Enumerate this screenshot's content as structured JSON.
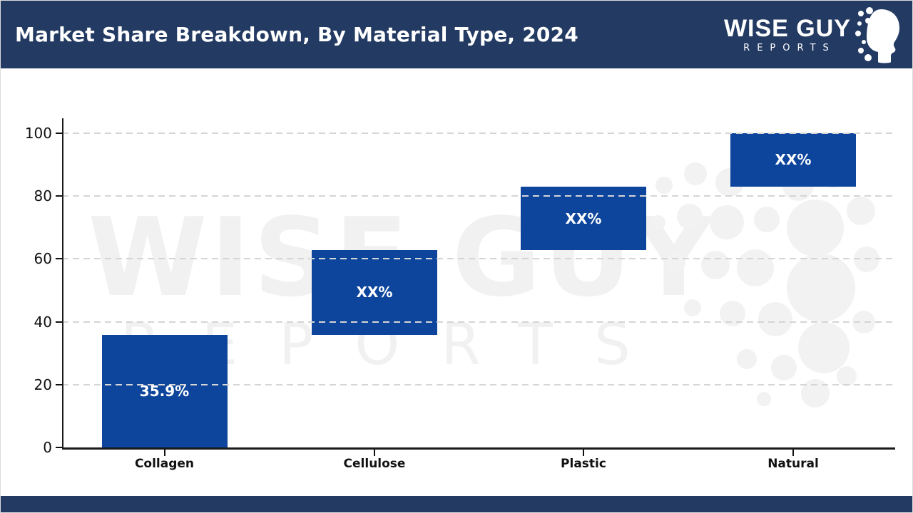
{
  "header": {
    "title": "Market Share Breakdown, By Material Type, 2024",
    "bg_color": "#233a63",
    "logo": {
      "line1": "WISE GUY",
      "line2": "REPORTS"
    }
  },
  "watermark": {
    "line1": "WISE GUY",
    "line2": "REPORTS",
    "color": "#f1f1f2"
  },
  "footer": {
    "bg_color": "#233a63"
  },
  "chart_data": {
    "type": "bar",
    "subtype": "waterfall",
    "title": "Market Share Breakdown, By Material Type, 2024",
    "categories": [
      "Collagen",
      "Cellulose",
      "Plastic",
      "Natural"
    ],
    "segments": [
      {
        "category": "Collagen",
        "start": 0,
        "end": 35.9,
        "label": "35.9%"
      },
      {
        "category": "Cellulose",
        "start": 35.9,
        "end": 62.8,
        "label": "XX%"
      },
      {
        "category": "Plastic",
        "start": 62.8,
        "end": 83.0,
        "label": "XX%"
      },
      {
        "category": "Natural",
        "start": 83.0,
        "end": 100,
        "label": "XX%"
      }
    ],
    "xlabel": "",
    "ylabel": "",
    "ylim": [
      0,
      100
    ],
    "yticks": [
      0,
      20,
      40,
      60,
      80,
      100
    ],
    "grid": "dashed-horizontal",
    "legend": "none",
    "bar_color": "#0d459c",
    "bar_label_color": "#ffffff",
    "grid_color": "#d5d5d5"
  }
}
